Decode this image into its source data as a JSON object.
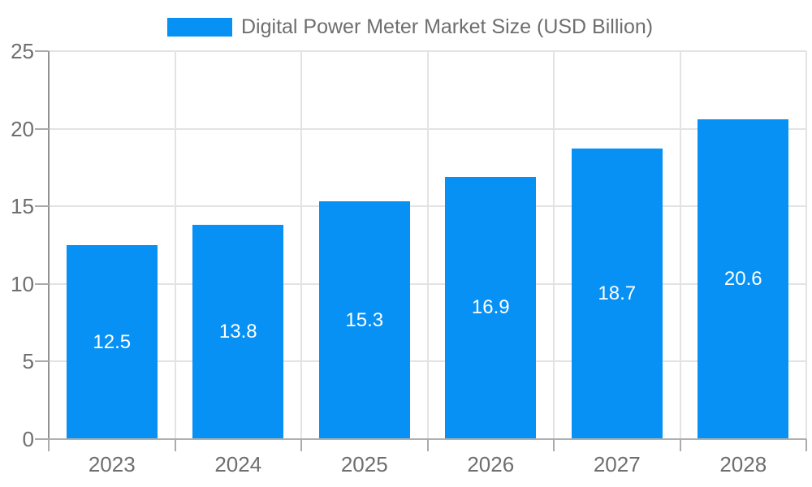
{
  "chart_data": {
    "type": "bar",
    "title": "Digital Power Meter Market Size (USD Billion)",
    "categories": [
      "2023",
      "2024",
      "2025",
      "2026",
      "2027",
      "2028"
    ],
    "values": [
      12.5,
      13.8,
      15.3,
      16.9,
      18.7,
      20.6
    ],
    "value_labels": [
      "12.5",
      "13.8",
      "15.3",
      "16.9",
      "18.7",
      "20.6"
    ],
    "xlabel": "",
    "ylabel": "",
    "ylim": [
      0,
      25
    ],
    "yticks": [
      0,
      5,
      10,
      15,
      20,
      25
    ],
    "grid": true,
    "legend_position": "top-center",
    "colors": {
      "bar": "#0891f5",
      "bar_value_text": "#ffffff",
      "gridline": "#e3e3e3",
      "y_axis_line": "#919191",
      "x_axis_line": "#b0b0b0",
      "tick_mark": "#ababab",
      "axis_text": "#6e6e6e",
      "legend_text": "#6e6e6e",
      "background": "#ffffff"
    }
  }
}
